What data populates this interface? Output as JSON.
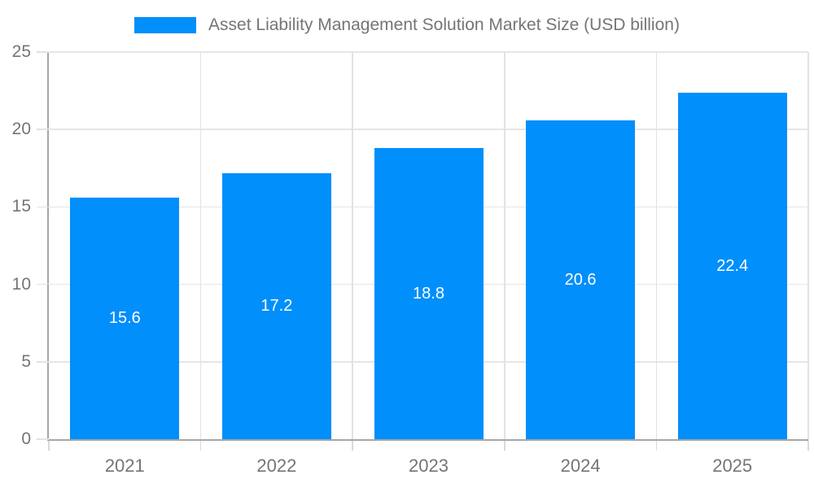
{
  "chart_data": {
    "type": "bar",
    "title": "Asset Liability Management Solution Market Size (USD billion)",
    "legend": [
      "Asset Liability Management Solution Market Size (USD billion)"
    ],
    "legend_position": "top-center",
    "categories": [
      "2021",
      "2022",
      "2023",
      "2024",
      "2025"
    ],
    "values": [
      15.6,
      17.2,
      18.8,
      20.6,
      22.4
    ],
    "value_labels": [
      "15.6",
      "17.2",
      "18.8",
      "20.6",
      "22.4"
    ],
    "xlabel": "",
    "ylabel": "",
    "ylim": [
      0,
      25
    ],
    "yticks": [
      0,
      5,
      10,
      15,
      20,
      25
    ],
    "grid": true,
    "bar_color": "#008FFB",
    "value_label_color": "#FFFFFF",
    "axis_label_color": "#757575"
  }
}
